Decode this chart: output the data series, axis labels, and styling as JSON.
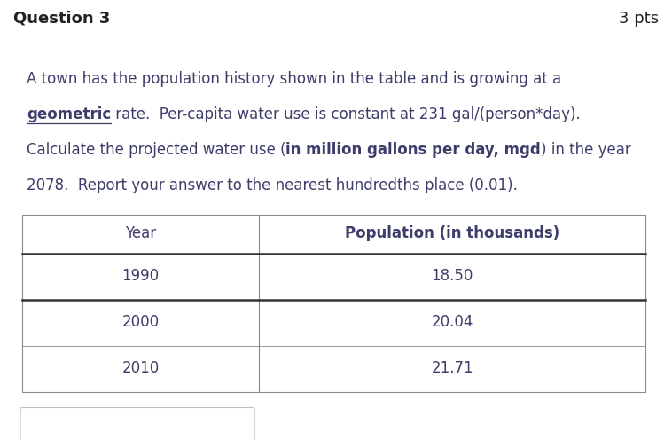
{
  "title_left": "Question 3",
  "title_right": "3 pts",
  "header_bg": "#e8e8e8",
  "bg_color": "#ffffff",
  "separator_color": "#b0b0b0",
  "text_color": "#3d3d6b",
  "title_color": "#222222",
  "line1": "A town has the population history shown in the table and is growing at a",
  "line2_pre": "",
  "line2_bold": "geometric",
  "line2_post": " rate.  Per-capita water use is constant at 231 gal/(person*day).",
  "line3_pre": "Calculate the projected water use (",
  "line3_bold": "in million gallons per day, mgd",
  "line3_post": ") in the year",
  "line4": "2078.  Report your answer to the nearest hundredths place (0.01).",
  "table_headers": [
    "Year",
    "Population (in thousands)"
  ],
  "table_rows": [
    [
      "1990",
      "18.50"
    ],
    [
      "2000",
      "20.04"
    ],
    [
      "2010",
      "21.71"
    ]
  ],
  "font_size_title": 13,
  "font_size_body": 12,
  "font_size_table": 12,
  "header_bg_color": "#e9e9e9",
  "table_border_color": "#888888",
  "table_thick_line_color": "#333333"
}
